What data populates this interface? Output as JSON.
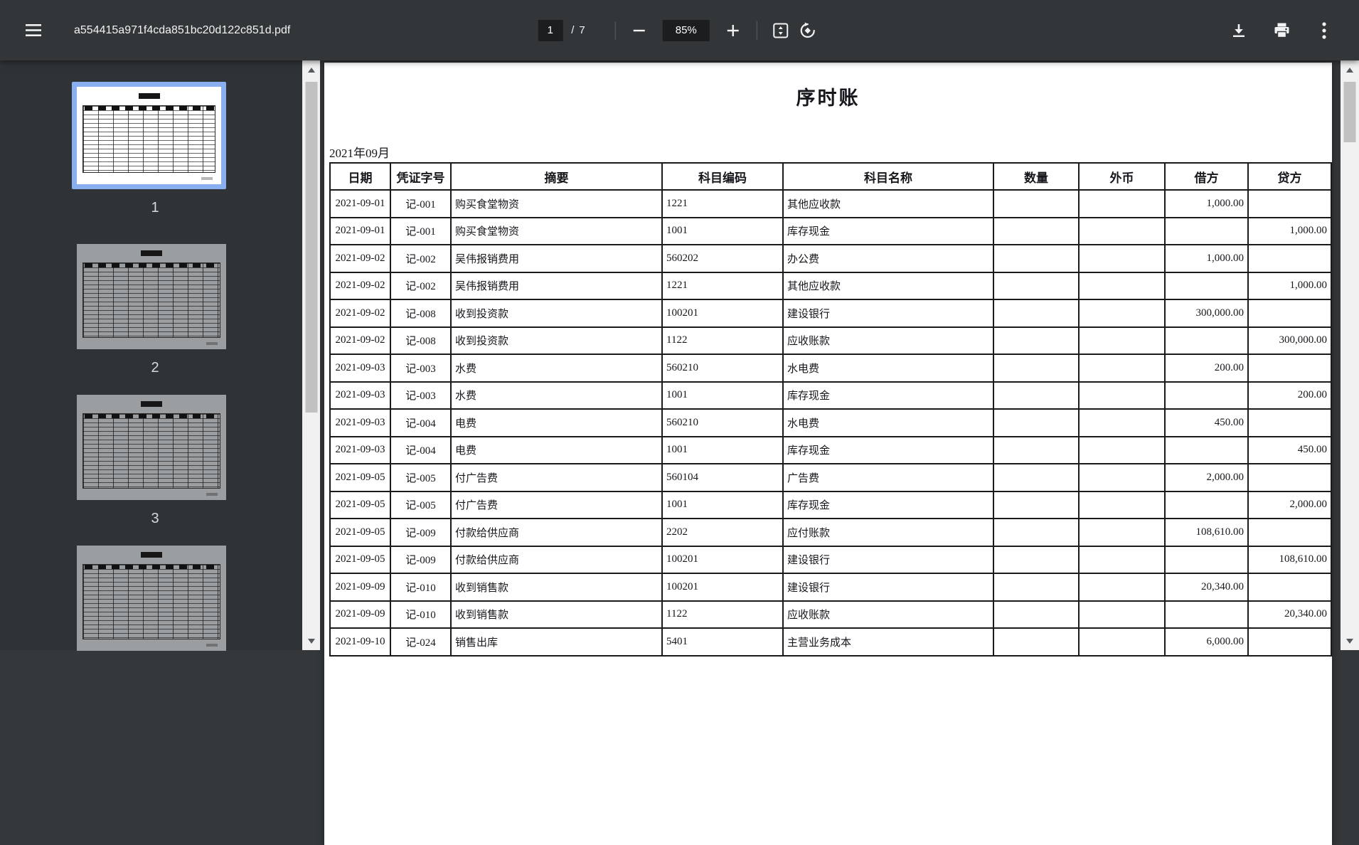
{
  "toolbar": {
    "filename": "a554415a971f4cda851bc20d122c851d.pdf",
    "page": {
      "current": "1",
      "separator": "/",
      "total": "7"
    },
    "zoom": {
      "value": "85%"
    }
  },
  "sidebar": {
    "thumbnails": [
      {
        "page_label": "1",
        "selected": true,
        "page_style": "white",
        "label_visible": true
      },
      {
        "page_label": "2",
        "selected": false,
        "page_style": "gray",
        "label_visible": true
      },
      {
        "page_label": "3",
        "selected": false,
        "page_style": "gray",
        "label_visible": true
      },
      {
        "page_label": "",
        "selected": false,
        "page_style": "gray",
        "label_visible": false
      }
    ]
  },
  "document": {
    "title": "序时账",
    "period": "2021年09月",
    "table": {
      "headers": [
        "日期",
        "凭证字号",
        "摘要",
        "科目编码",
        "科目名称",
        "数量",
        "外币",
        "借方",
        "贷方"
      ],
      "rows": [
        [
          "2021-09-01",
          "记-001",
          "购买食堂物资",
          "1221",
          "其他应收款",
          "",
          "",
          "1,000.00",
          ""
        ],
        [
          "2021-09-01",
          "记-001",
          "购买食堂物资",
          "1001",
          "库存现金",
          "",
          "",
          "",
          "1,000.00"
        ],
        [
          "2021-09-02",
          "记-002",
          "吴伟报销费用",
          "560202",
          "办公费",
          "",
          "",
          "1,000.00",
          ""
        ],
        [
          "2021-09-02",
          "记-002",
          "吴伟报销费用",
          "1221",
          "其他应收款",
          "",
          "",
          "",
          "1,000.00"
        ],
        [
          "2021-09-02",
          "记-008",
          "收到投资款",
          "100201",
          "建设银行",
          "",
          "",
          "300,000.00",
          ""
        ],
        [
          "2021-09-02",
          "记-008",
          "收到投资款",
          "1122",
          "应收账款",
          "",
          "",
          "",
          "300,000.00"
        ],
        [
          "2021-09-03",
          "记-003",
          "水费",
          "560210",
          "水电费",
          "",
          "",
          "200.00",
          ""
        ],
        [
          "2021-09-03",
          "记-003",
          "水费",
          "1001",
          "库存现金",
          "",
          "",
          "",
          "200.00"
        ],
        [
          "2021-09-03",
          "记-004",
          "电费",
          "560210",
          "水电费",
          "",
          "",
          "450.00",
          ""
        ],
        [
          "2021-09-03",
          "记-004",
          "电费",
          "1001",
          "库存现金",
          "",
          "",
          "",
          "450.00"
        ],
        [
          "2021-09-05",
          "记-005",
          "付广告费",
          "560104",
          "广告费",
          "",
          "",
          "2,000.00",
          ""
        ],
        [
          "2021-09-05",
          "记-005",
          "付广告费",
          "1001",
          "库存现金",
          "",
          "",
          "",
          "2,000.00"
        ],
        [
          "2021-09-05",
          "记-009",
          "付款给供应商",
          "2202",
          "应付账款",
          "",
          "",
          "108,610.00",
          ""
        ],
        [
          "2021-09-05",
          "记-009",
          "付款给供应商",
          "100201",
          "建设银行",
          "",
          "",
          "",
          "108,610.00"
        ],
        [
          "2021-09-09",
          "记-010",
          "收到销售款",
          "100201",
          "建设银行",
          "",
          "",
          "20,340.00",
          ""
        ],
        [
          "2021-09-09",
          "记-010",
          "收到销售款",
          "1122",
          "应收账款",
          "",
          "",
          "",
          "20,340.00"
        ],
        [
          "2021-09-10",
          "记-024",
          "销售出库",
          "5401",
          "主营业务成本",
          "",
          "",
          "6,000.00",
          ""
        ]
      ]
    }
  },
  "colors": {
    "toolbar_bg": "#323639",
    "viewer_bg": "#35383b",
    "sidebar_bg": "#2f3336",
    "selected_thumbnail_border": "#8aaff0",
    "scrollbar_track": "#f1f1f1",
    "scrollbar_thumb": "#c1c1c1",
    "pdf_page_bg": "#ffffff",
    "table_border": "#1a1a1a"
  }
}
